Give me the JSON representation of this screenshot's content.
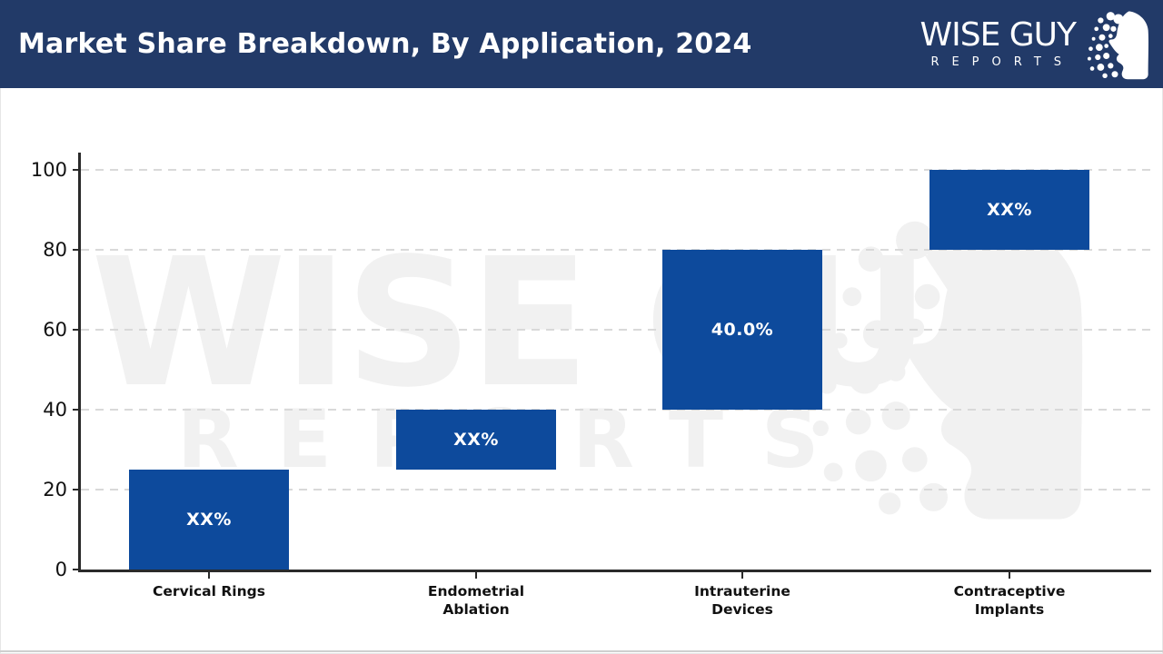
{
  "header": {
    "title": "Market Share Breakdown, By Application, 2024",
    "logo": {
      "wordmark": "WISE GUY",
      "subtext": "REPORTS"
    }
  },
  "watermark": {
    "wordmark": "WISE GUY",
    "subtext": "REPORTS"
  },
  "colors": {
    "header_bg": "#223a68",
    "bar_blue": "#0d4a9c",
    "bar_label": "#ffffff",
    "gridline": "#d9d9d9",
    "axis": "#2a2a2a",
    "tick_text": "#111111",
    "watermark_gray": "#f1f1f1",
    "bottom_line": "#cfcfcf"
  },
  "chart_data": {
    "type": "bar",
    "subtype": "waterfall",
    "title": "Market Share Breakdown, By Application, 2024",
    "categories": [
      "Cervical Rings",
      "Endometrial Ablation",
      "Intrauterine Devices",
      "Contraceptive Implants"
    ],
    "categories_wrapped": [
      "Cervical Rings",
      "Endometrial\nAblation",
      "Intrauterine\nDevices",
      "Contraceptive\nImplants"
    ],
    "segments": [
      {
        "category": "Cervical Rings",
        "start": 0,
        "end": 25,
        "label": "XX%"
      },
      {
        "category": "Endometrial Ablation",
        "start": 25,
        "end": 40,
        "label": "XX%"
      },
      {
        "category": "Intrauterine Devices",
        "start": 40,
        "end": 80,
        "label": "40.0%"
      },
      {
        "category": "Contraceptive Implants",
        "start": 80,
        "end": 100,
        "label": "XX%"
      }
    ],
    "y_ticks": [
      0,
      20,
      40,
      60,
      80,
      100
    ],
    "ylim": [
      0,
      100
    ],
    "grid": "horizontal-dashed",
    "legend": "none",
    "xlabel": "",
    "ylabel": ""
  }
}
